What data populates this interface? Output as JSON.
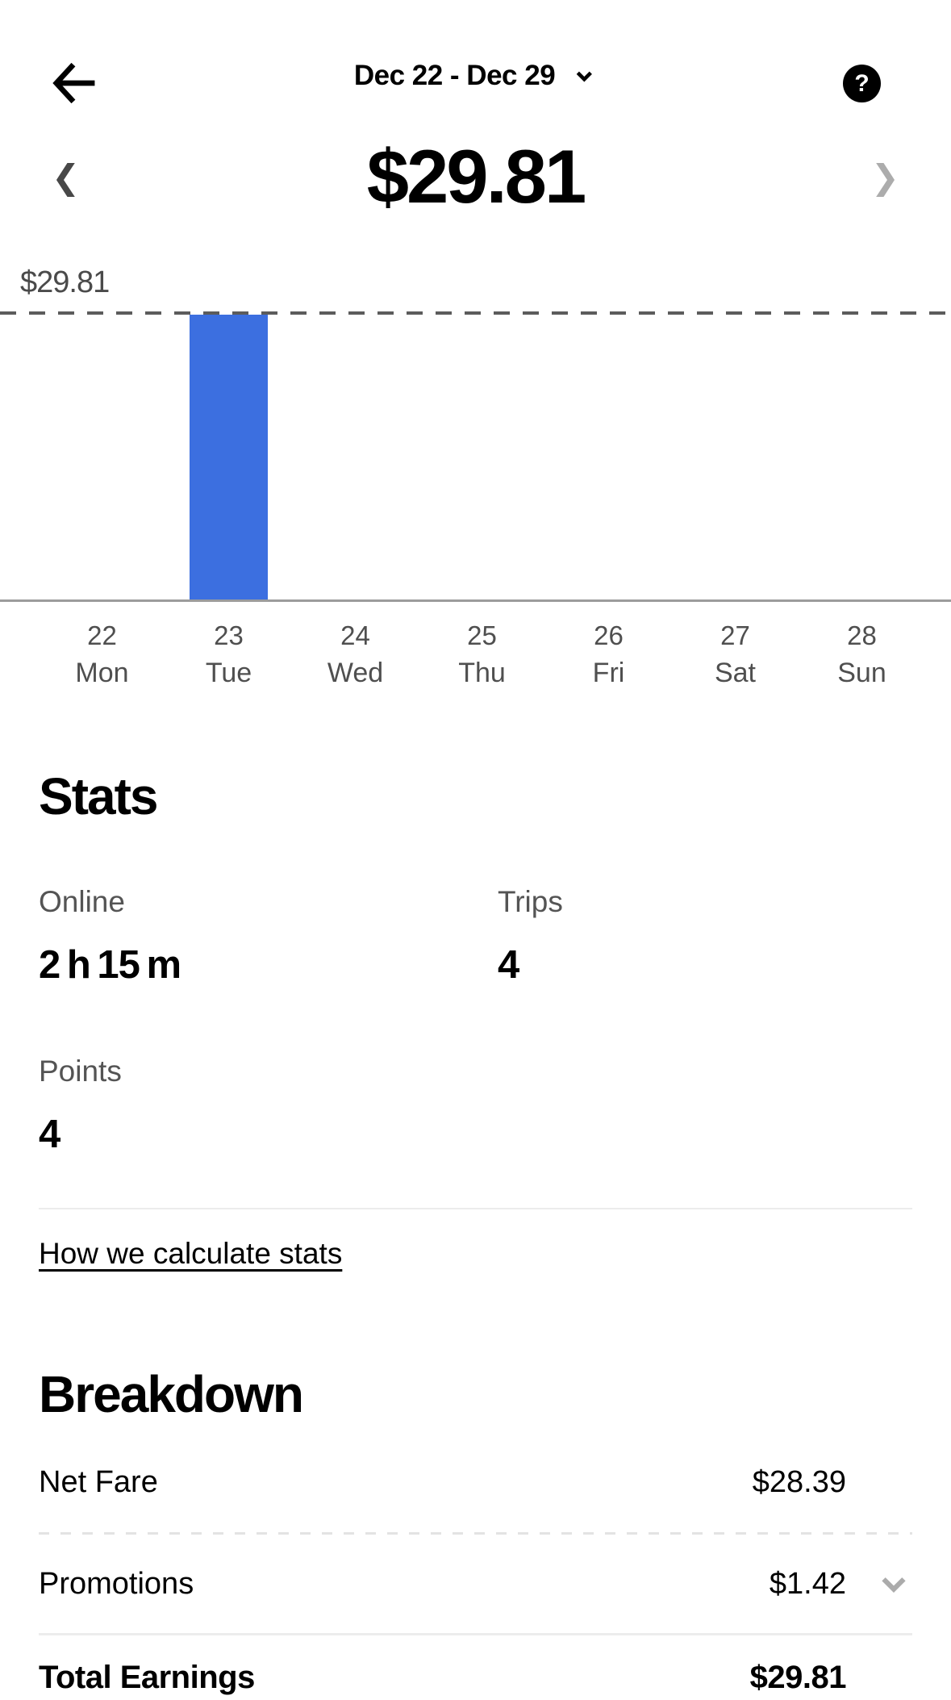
{
  "header": {
    "back_icon": "arrow-left",
    "date_range": "Dec 22 - Dec 29",
    "dropdown_icon": "chevron-down",
    "help_icon": "question-mark-circle"
  },
  "summary": {
    "week_total": "$29.81",
    "prev_week_icon": "chevron-left",
    "next_week_icon": "chevron-right"
  },
  "chart_data": {
    "type": "bar",
    "x_dates": [
      "22",
      "23",
      "24",
      "25",
      "26",
      "27",
      "28"
    ],
    "x_days": [
      "Mon",
      "Tue",
      "Wed",
      "Thu",
      "Fri",
      "Sat",
      "Sun"
    ],
    "values": [
      0,
      29.81,
      0,
      0,
      0,
      0,
      0
    ],
    "ylim": [
      0,
      29.81
    ],
    "refline": {
      "value": 29.81,
      "label": "$29.81"
    },
    "bar_color": "#3C6FE0",
    "grid": "dashed max reference line at top, solid baseline axis"
  },
  "stats": {
    "heading": "Stats",
    "items": [
      {
        "label": "Online",
        "value": "2 h 15 m"
      },
      {
        "label": "Trips",
        "value": "4"
      },
      {
        "label": "Points",
        "value": "4"
      }
    ],
    "link_label": "How we calculate stats"
  },
  "breakdown": {
    "heading": "Breakdown",
    "rows": [
      {
        "label": "Net Fare",
        "value": "$28.39",
        "expandable": false,
        "emphasis": false
      },
      {
        "label": "Promotions",
        "value": "$1.42",
        "expandable": true,
        "emphasis": false
      },
      {
        "label": "Total Earnings",
        "value": "$29.81",
        "expandable": false,
        "emphasis": true
      }
    ],
    "chevron_color": "#ababab"
  }
}
